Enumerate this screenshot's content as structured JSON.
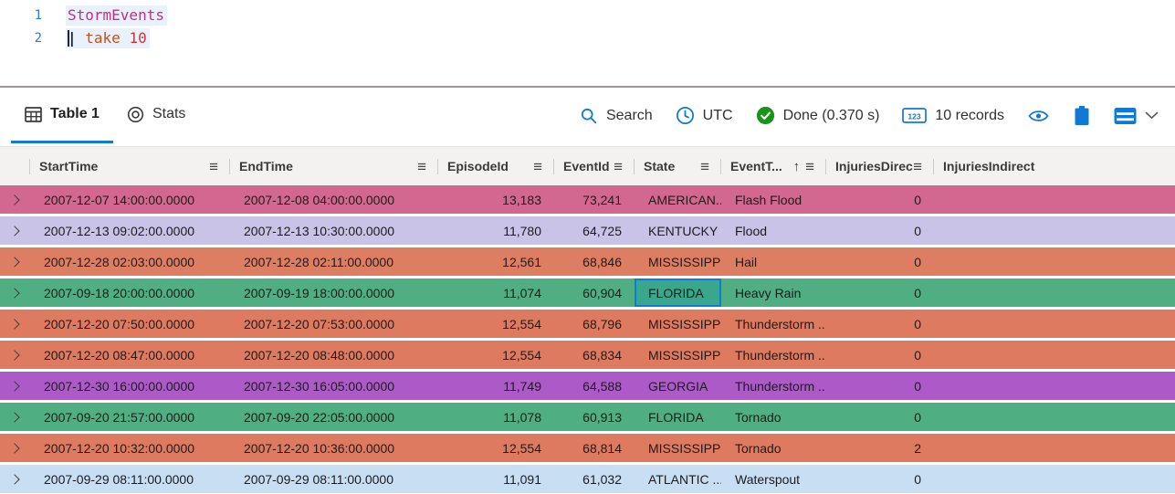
{
  "editor": {
    "line1": {
      "number": "1",
      "table_name": "StormEvents"
    },
    "line2": {
      "number": "2",
      "pipe": "| ",
      "operator": "take ",
      "literal": "10"
    }
  },
  "toolbar": {
    "tab_table_label": "Table 1",
    "tab_stats_label": "Stats",
    "search_label": "Search",
    "timezone_label": "UTC",
    "status_label": "Done (0.370 s)",
    "records_label": "10 records"
  },
  "colors": {
    "accent_blue": "#0f7bd7",
    "status_green": "#189418",
    "selected_cell_fill": "#38a78c"
  },
  "grid": {
    "columns": [
      {
        "label": "",
        "expander": true,
        "menu": false
      },
      {
        "label": "StartTime",
        "menu": true
      },
      {
        "label": "EndTime",
        "menu": true
      },
      {
        "label": "EpisodeId",
        "menu": true
      },
      {
        "label": "EventId",
        "menu": true
      },
      {
        "label": "State",
        "menu": true
      },
      {
        "label": "EventT...",
        "menu": true,
        "sorted": "asc"
      },
      {
        "label": "InjuriesDirect",
        "menu": true
      },
      {
        "label": "InjuriesIndirect",
        "menu": false
      }
    ],
    "selected": {
      "row": 3,
      "col": 5
    },
    "rows": [
      {
        "color": "#d2688f",
        "cells": [
          "2007-12-07 14:00:00.0000",
          "2007-12-08 04:00:00.0000",
          "13,183",
          "73,241",
          "AMERICAN...",
          "Flash Flood",
          "0",
          ""
        ]
      },
      {
        "color": "#c8c3e7",
        "cells": [
          "2007-12-13 09:02:00.0000",
          "2007-12-13 10:30:00.0000",
          "11,780",
          "64,725",
          "KENTUCKY",
          "Flood",
          "0",
          ""
        ]
      },
      {
        "color": "#dd7e62",
        "cells": [
          "2007-12-28 02:03:00.0000",
          "2007-12-28 02:11:00.0000",
          "12,561",
          "68,846",
          "MISSISSIPPI",
          "Hail",
          "0",
          ""
        ]
      },
      {
        "color": "#4fae82",
        "cells": [
          "2007-09-18 20:00:00.0000",
          "2007-09-19 18:00:00.0000",
          "11,074",
          "60,904",
          "FLORIDA",
          "Heavy Rain",
          "0",
          ""
        ]
      },
      {
        "color": "#dd7a60",
        "cells": [
          "2007-12-20 07:50:00.0000",
          "2007-12-20 07:53:00.0000",
          "12,554",
          "68,796",
          "MISSISSIPPI",
          "Thunderstorm ...",
          "0",
          ""
        ]
      },
      {
        "color": "#dd7a60",
        "cells": [
          "2007-12-20 08:47:00.0000",
          "2007-12-20 08:48:00.0000",
          "12,554",
          "68,834",
          "MISSISSIPPI",
          "Thunderstorm ...",
          "0",
          ""
        ]
      },
      {
        "color": "#ab5ac8",
        "cells": [
          "2007-12-30 16:00:00.0000",
          "2007-12-30 16:05:00.0000",
          "11,749",
          "64,588",
          "GEORGIA",
          "Thunderstorm ...",
          "0",
          ""
        ]
      },
      {
        "color": "#4fae82",
        "cells": [
          "2007-09-20 21:57:00.0000",
          "2007-09-20 22:05:00.0000",
          "11,078",
          "60,913",
          "FLORIDA",
          "Tornado",
          "0",
          ""
        ]
      },
      {
        "color": "#dd7a60",
        "cells": [
          "2007-12-20 10:32:00.0000",
          "2007-12-20 10:36:00.0000",
          "12,554",
          "68,814",
          "MISSISSIPPI",
          "Tornado",
          "2",
          ""
        ]
      },
      {
        "color": "#c8def3",
        "cells": [
          "2007-09-29 08:11:00.0000",
          "2007-09-29 08:11:00.0000",
          "11,091",
          "61,032",
          "ATLANTIC ...",
          "Waterspout",
          "0",
          ""
        ]
      }
    ]
  }
}
